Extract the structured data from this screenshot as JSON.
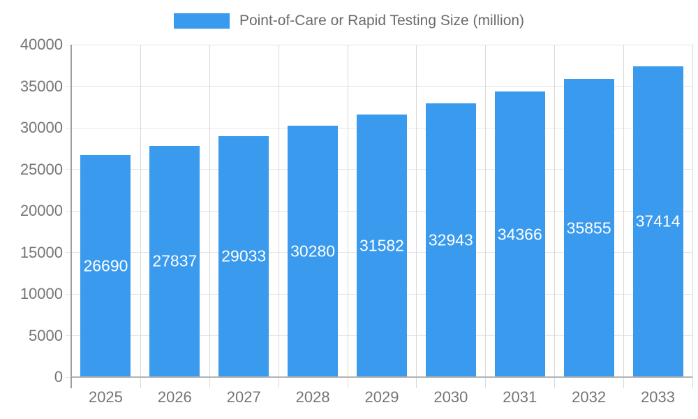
{
  "chart_data": {
    "type": "bar",
    "title": "",
    "legend_label": "Point-of-Care or Rapid Testing Size (million)",
    "legend_position": "top",
    "categories": [
      "2025",
      "2026",
      "2027",
      "2028",
      "2029",
      "2030",
      "2031",
      "2032",
      "2033"
    ],
    "values": [
      26690,
      27837,
      29033,
      30280,
      31582,
      32943,
      34366,
      35855,
      37414
    ],
    "value_labels_visible": true,
    "xlabel": "",
    "ylabel": "",
    "ylim": [
      0,
      40000
    ],
    "ytick_step": 5000,
    "yticks": [
      0,
      5000,
      10000,
      15000,
      20000,
      25000,
      30000,
      35000,
      40000
    ],
    "grid": "horizontal gridlines at y ticks plus vertical lines at category boundaries",
    "colors": {
      "bar": "#399AEE",
      "grid_line": "#E6E6E6",
      "v_grid_line": "#D9D9D9",
      "y_axis_line": "#9E9E9E",
      "x_baseline": "#B3B3B3",
      "axis_text": "#757575",
      "legend_text": "#6B6B6B",
      "value_label_text": "#FFFFFF",
      "background": "#FFFFFF"
    }
  }
}
